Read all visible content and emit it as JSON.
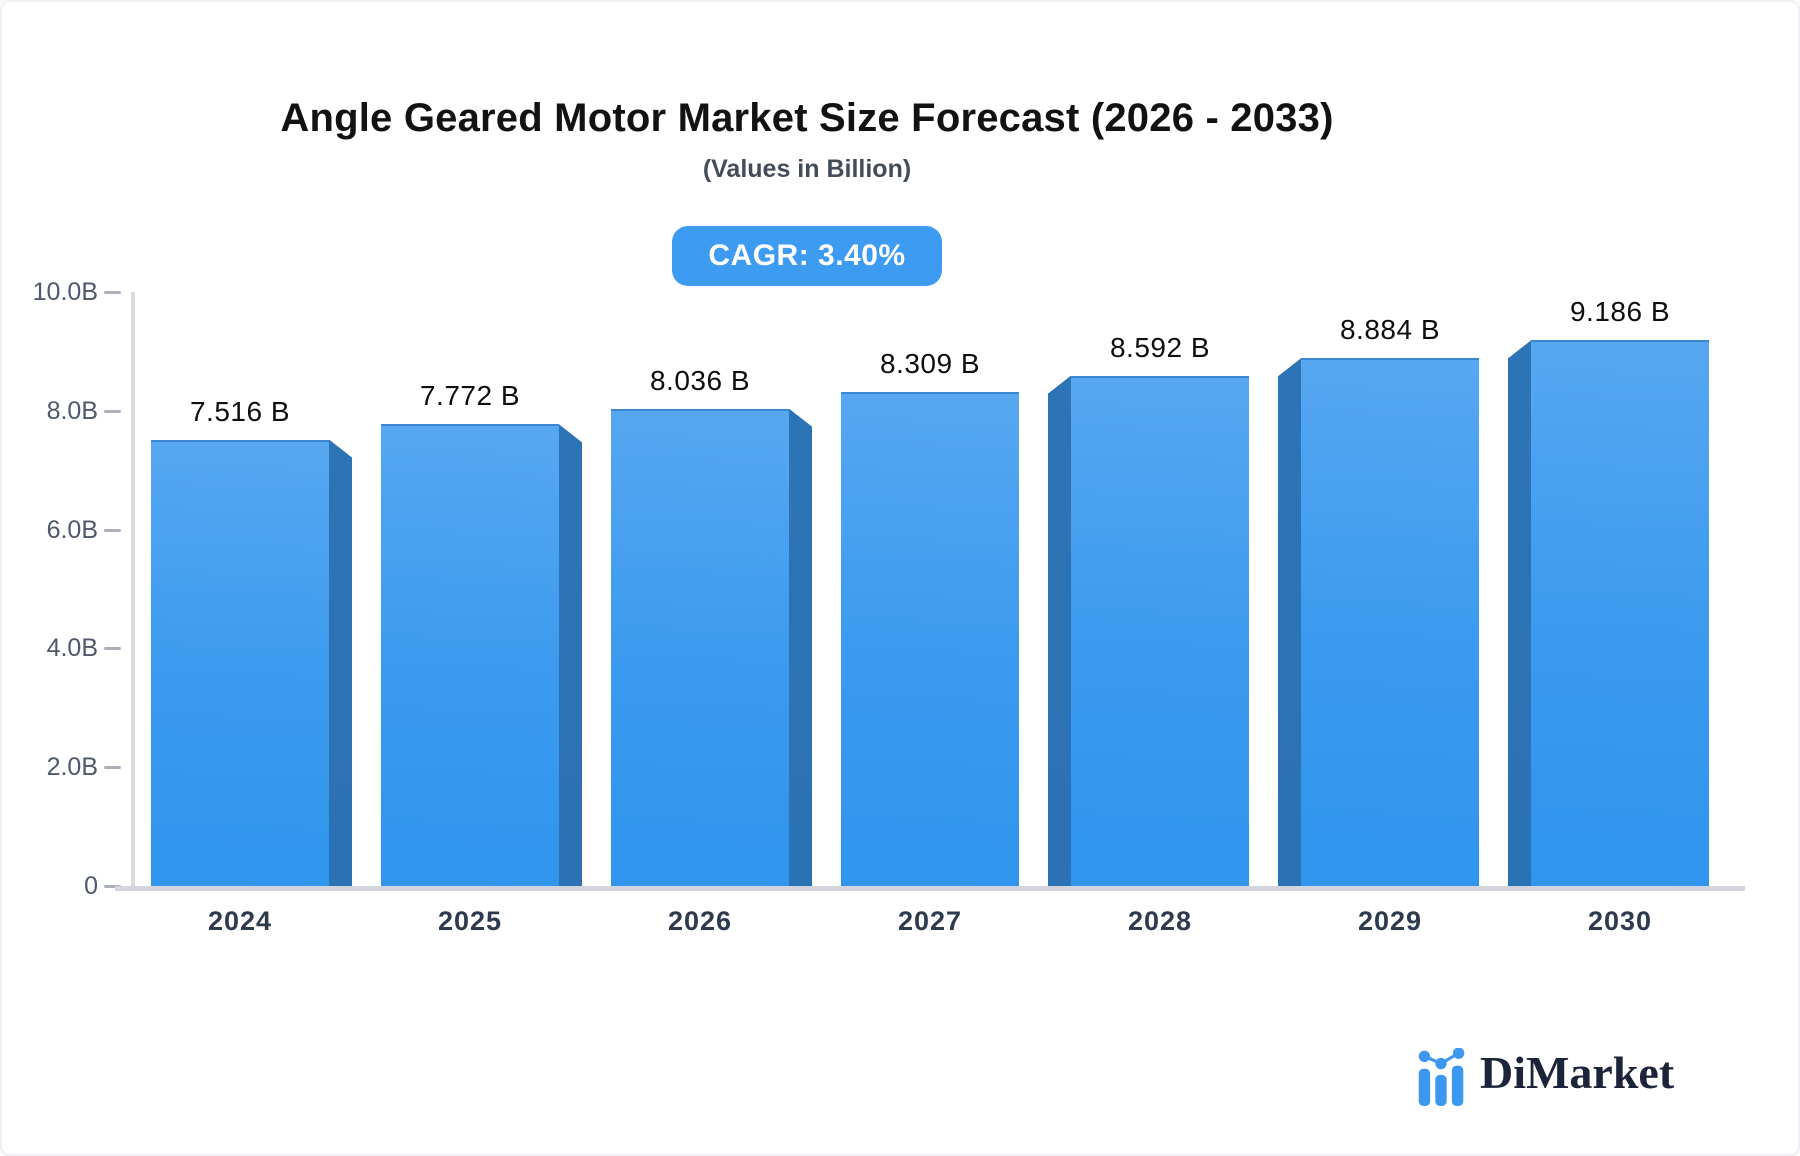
{
  "chart_data": {
    "type": "bar",
    "title": "Angle Geared Motor Market Size Forecast (2026 - 2033)",
    "subtitle": "(Values in Billion)",
    "cagr_label": "CAGR: 3.40%",
    "unit": "Billion",
    "categories": [
      "2024",
      "2025",
      "2026",
      "2027",
      "2028",
      "2029",
      "2030"
    ],
    "values": [
      7.516,
      7.772,
      8.036,
      8.309,
      8.592,
      8.884,
      9.186
    ],
    "value_labels": [
      "7.516 B",
      "7.772 B",
      "8.036 B",
      "8.309 B",
      "8.592 B",
      "8.884 B",
      "9.186 B"
    ],
    "ylim": [
      0,
      10
    ],
    "yticks": [
      {
        "label": "10.0B",
        "value": 10
      },
      {
        "label": "8.0B",
        "value": 8
      },
      {
        "label": "6.0B",
        "value": 6
      },
      {
        "label": "4.0B",
        "value": 4
      },
      {
        "label": "2.0B",
        "value": 2
      },
      {
        "label": "0",
        "value": 0
      }
    ],
    "grid": false,
    "legend": false,
    "bar_color": "#3b9bef",
    "bar_side_color": "#2d74b6",
    "accent_color": "#3d9cf2"
  },
  "branding": {
    "logo_text": "DiMarket",
    "logo_icon": "mini-bar-line-chart-icon",
    "logo_icon_color": "#3b97f0",
    "logo_text_color": "#1b2438"
  }
}
